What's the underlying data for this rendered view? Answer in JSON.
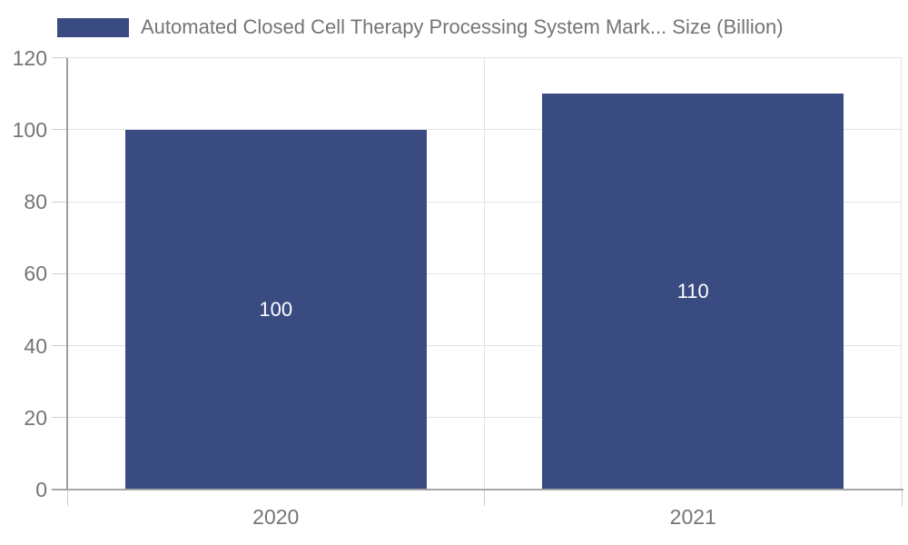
{
  "legend": {
    "label": "Automated Closed Cell Therapy Processing System Mark... Size (Billion)"
  },
  "chart_data": {
    "type": "bar",
    "title": "",
    "xlabel": "",
    "ylabel": "",
    "categories": [
      "2020",
      "2021"
    ],
    "series": [
      {
        "name": "Automated Closed Cell Therapy Processing System Mark... Size (Billion)",
        "values": [
          100,
          110
        ]
      }
    ],
    "value_labels": [
      "100",
      "110"
    ],
    "ylim": [
      0,
      120
    ],
    "yticks": [
      0,
      20,
      40,
      60,
      80,
      100,
      120
    ],
    "grid": true,
    "legend_position": "top-left",
    "colors": {
      "bar": "#3A4B82",
      "text": "#757575",
      "value_label": "#ffffff",
      "grid_line": "#e3e3e3",
      "axis_line": "#a6a6a6",
      "tick_line": "#cccccc",
      "background": "#ffffff"
    }
  }
}
